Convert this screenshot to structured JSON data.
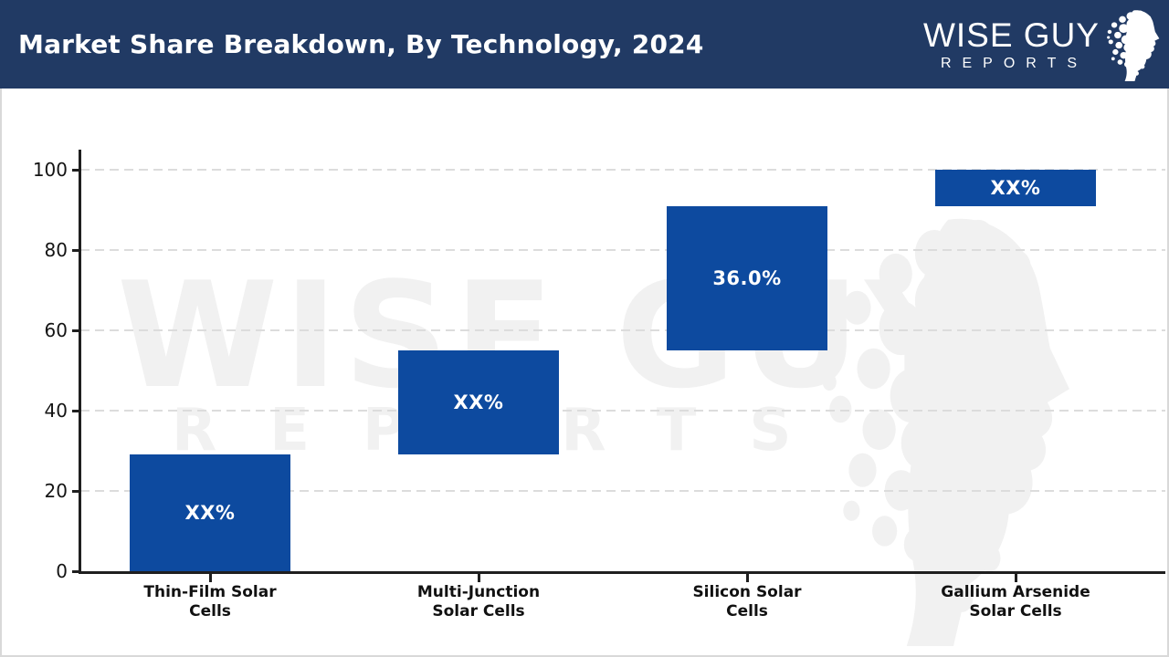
{
  "header": {
    "title": "Market Share Breakdown, By Technology, 2024",
    "logo": {
      "name": "wise-guy-reports-logo",
      "line1": "WISE GUY",
      "line2": "REPORTS"
    }
  },
  "watermark": {
    "line1": "WISE GUY",
    "line2": "REPORTS"
  },
  "colors": {
    "header_bg": "#213a64",
    "bar_fill": "#0d4a9f",
    "bar_label_text": "#ffffff",
    "axis": "#1f1f1f",
    "gridline": "#dcdcdc",
    "tick_label_text": "#141414",
    "category_label_text": "#111111",
    "watermark": "#f1f1f1",
    "page_edge_line": "#d9d9d9"
  },
  "chart_data": {
    "type": "bar",
    "subtype": "floating-waterfall-segments",
    "title": "Market Share Breakdown, By Technology, 2024",
    "categories": [
      "Thin-Film Solar Cells",
      "Multi-Junction Solar Cells",
      "Silicon Solar Cells",
      "Gallium Arsenide Solar Cells"
    ],
    "category_lines": [
      [
        "Thin-Film Solar",
        "Cells"
      ],
      [
        "Multi-Junction",
        "Solar Cells"
      ],
      [
        "Silicon Solar",
        "Cells"
      ],
      [
        "Gallium Arsenide",
        "Solar Cells"
      ]
    ],
    "bars": [
      {
        "category": "Thin-Film Solar Cells",
        "start": 0,
        "end": 29,
        "label": "XX%"
      },
      {
        "category": "Multi-Junction Solar Cells",
        "start": 29,
        "end": 55,
        "label": "XX%"
      },
      {
        "category": "Silicon Solar Cells",
        "start": 55,
        "end": 91,
        "label": "36.0%"
      },
      {
        "category": "Gallium Arsenide Solar Cells",
        "start": 91,
        "end": 100,
        "label": "XX%"
      }
    ],
    "yticks": [
      0,
      20,
      40,
      60,
      80,
      100
    ],
    "ylim": [
      0,
      105
    ],
    "xlabel": "",
    "ylabel": "",
    "grid": "horizontal-dashed",
    "legend": "none"
  }
}
